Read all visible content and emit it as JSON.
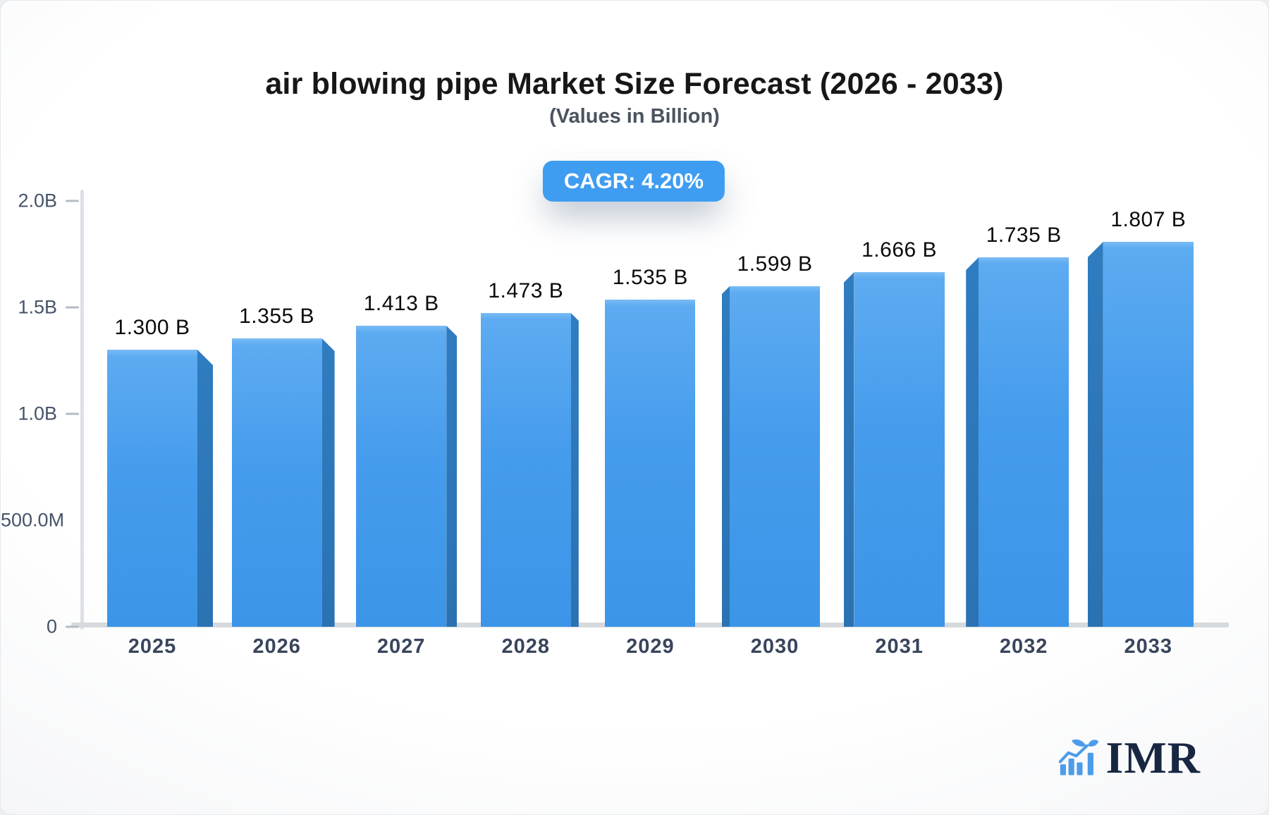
{
  "header": {
    "title": "air blowing pipe Market Size Forecast (2026 - 2033)",
    "subtitle": "(Values in Billion)",
    "cagr_label": "CAGR: 4.20%"
  },
  "brand": {
    "text": "IMR",
    "icon": "bar-chart-leaf-icon"
  },
  "colors": {
    "accent_blue": "#3f9df1",
    "bar_face_top": "#5dabf1",
    "bar_face_bottom": "#3c95e8",
    "bar_side": "#2b72b2",
    "axis_gray": "#d6dade",
    "title_text": "#171717",
    "subtitle_text": "#4b5360",
    "axis_label_text": "#46536a",
    "x_label_text": "#39455c",
    "logo_navy": "#182642",
    "logo_blue": "#4c9ce9"
  },
  "chart_data": {
    "type": "bar",
    "title": "air blowing pipe Market Size Forecast (2026 - 2033)",
    "subtitle": "(Values in Billion)",
    "annotation": "CAGR: 4.20%",
    "categories": [
      "2025",
      "2026",
      "2027",
      "2028",
      "2029",
      "2030",
      "2031",
      "2032",
      "2033"
    ],
    "values": [
      1.3,
      1.355,
      1.413,
      1.473,
      1.535,
      1.599,
      1.666,
      1.735,
      1.807
    ],
    "value_labels": [
      "1.300 B",
      "1.355 B",
      "1.413 B",
      "1.473 B",
      "1.535 B",
      "1.599 B",
      "1.666 B",
      "1.735 B",
      "1.807 B"
    ],
    "unit": "Billion",
    "xlabel": "",
    "ylabel": "",
    "ylim": [
      0,
      2.0
    ],
    "grid": false,
    "legend": "none",
    "y_ticks": [
      {
        "label": "2.0B",
        "value": 2.0,
        "dash": true
      },
      {
        "label": "1.5B",
        "value": 1.5,
        "dash": true
      },
      {
        "label": "1.0B",
        "value": 1.0,
        "dash": true
      },
      {
        "label": "500.0M",
        "value": 0.5,
        "dash": false
      },
      {
        "label": "0",
        "value": 0.0,
        "dash": true
      }
    ]
  }
}
